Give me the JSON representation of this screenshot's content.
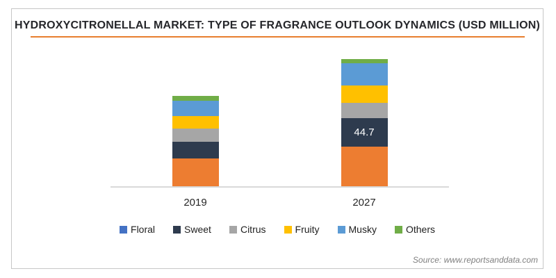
{
  "header": {
    "title": "HYDROXYCITRONELLAL MARKET: TYPE OF FRAGRANCE OUTLOOK DYNAMICS (USD MILLION)",
    "accent_color": "#e87e2e"
  },
  "footer": {
    "source": "Source: www.reportsanddata.com"
  },
  "chart_data": {
    "type": "bar",
    "stacked": true,
    "title": "HYDROXYCITRONELLAL MARKET: TYPE OF FRAGRANCE OUTLOOK DYNAMICS (USD MILLION)",
    "unit": "USD Million",
    "categories": [
      "2019",
      "2027"
    ],
    "series": [
      {
        "name": "Floral",
        "legend_color": "#4472c4",
        "bar_color": "#ed7d31",
        "values": [
          43.5,
          62.0
        ]
      },
      {
        "name": "Sweet",
        "legend_color": "#2e3b4e",
        "bar_color": "#2e3b4e",
        "values": [
          26.5,
          44.7
        ]
      },
      {
        "name": "Citrus",
        "legend_color": "#a6a6a6",
        "bar_color": "#a6a6a6",
        "values": [
          20.4,
          24.3
        ]
      },
      {
        "name": "Fruity",
        "legend_color": "#ffc000",
        "bar_color": "#ffc000",
        "values": [
          20.3,
          27.2
        ]
      },
      {
        "name": "Musky",
        "legend_color": "#5b9bd5",
        "bar_color": "#5b9bd5",
        "values": [
          23.7,
          34.6
        ]
      },
      {
        "name": "Others",
        "legend_color": "#70ad47",
        "bar_color": "#70ad47",
        "values": [
          7.6,
          7.2
        ]
      }
    ],
    "data_labels": [
      {
        "category": "2027",
        "series": "Sweet",
        "text": "44.7",
        "color": "#ffffff"
      }
    ],
    "legend_position": "bottom",
    "grid": false,
    "y_axis_visible": false,
    "axis_line_color": "#d9d9d9"
  }
}
